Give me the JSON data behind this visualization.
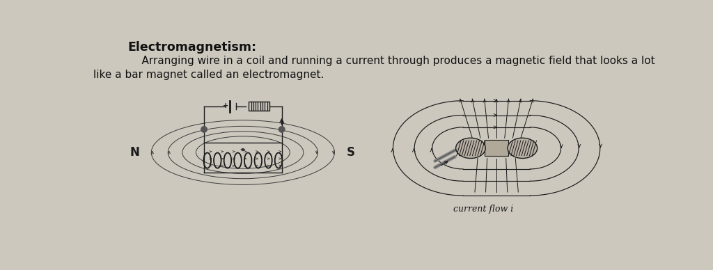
{
  "bg_color": "#cdc8be",
  "title": "Electromagnetism:",
  "body_line1": "    Arranging wire in a coil and running a current through produces a magnetic field that looks a lot",
  "body_line2": "like a bar magnet called an electromagnet.",
  "title_fontsize": 12.5,
  "body_fontsize": 11,
  "label_N": "N",
  "label_S": "S",
  "caption": "current flow i"
}
